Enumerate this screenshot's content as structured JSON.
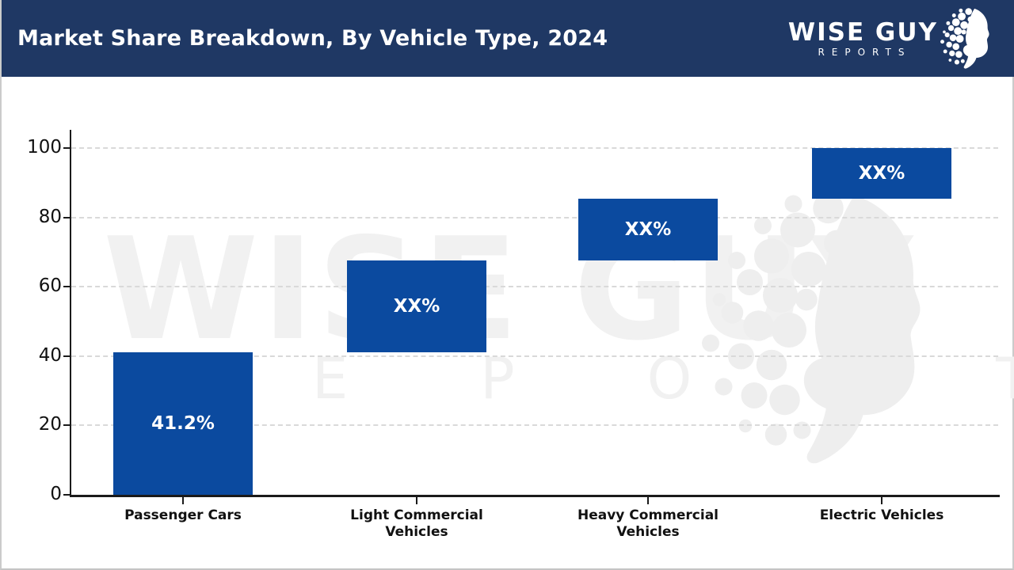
{
  "header": {
    "title": "Market Share Breakdown, By Vehicle Type, 2024",
    "logo": {
      "line1": "WISE GUY",
      "line2": "REPORTS"
    }
  },
  "watermark": {
    "line1": "WISE GUY",
    "line2": "R E P O R T S"
  },
  "colors": {
    "header_bg": "#1f3864",
    "bar_fill": "#0b4a9f",
    "grid": "#d9d9d9",
    "axis": "#1a1a1a",
    "watermark_text": "#f1f1f1",
    "bar_label_text": "#ffffff"
  },
  "chart_data": {
    "type": "bar",
    "subtype": "waterfall",
    "title": "Market Share Breakdown, By Vehicle Type, 2024",
    "categories": [
      "Passenger Cars",
      "Light Commercial Vehicles",
      "Heavy Commercial Vehicles",
      "Electric Vehicles"
    ],
    "segments": [
      {
        "category": "Passenger Cars",
        "start": 0,
        "end": 41.2,
        "label": "41.2%"
      },
      {
        "category": "Light Commercial Vehicles",
        "start": 41.2,
        "end": 67.6,
        "label": "XX%"
      },
      {
        "category": "Heavy Commercial Vehicles",
        "start": 67.6,
        "end": 85.4,
        "label": "XX%"
      },
      {
        "category": "Electric Vehicles",
        "start": 85.4,
        "end": 100,
        "label": "XX%"
      }
    ],
    "xlabel": "",
    "ylabel": "",
    "yticks": [
      0,
      20,
      40,
      60,
      80,
      100
    ],
    "ylim": [
      0,
      100
    ],
    "grid": "dashed-horizontal",
    "legend": "none"
  }
}
